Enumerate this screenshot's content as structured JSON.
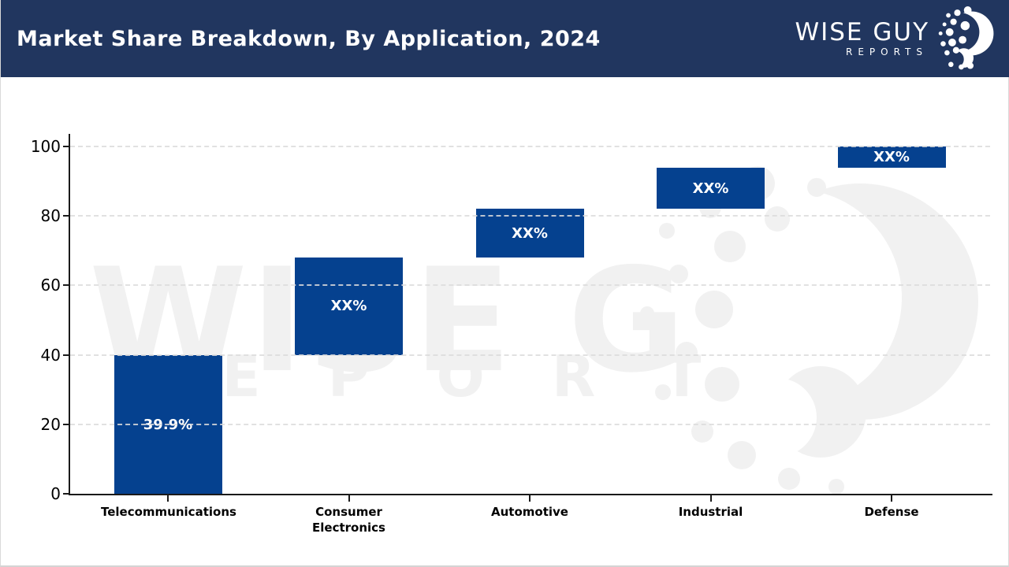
{
  "header": {
    "title": "Market Share Breakdown, By Application, 2024",
    "logo": {
      "line1": "WISE GUY",
      "line2": "REPORTS"
    },
    "bg_color": "#21365f",
    "text_color": "#ffffff"
  },
  "watermark": {
    "line1": "WISE GUY",
    "line2": "R E P O R T S",
    "color": "#f1f1f1"
  },
  "chart_data": {
    "type": "bar",
    "subtype": "waterfall",
    "title": "Market Share Breakdown, By Application, 2024",
    "categories": [
      "Telecommunications",
      "Consumer Electronics",
      "Automotive",
      "Industrial",
      "Defense"
    ],
    "segments": [
      {
        "category": "Telecommunications",
        "start": 0,
        "end": 39.9,
        "label": "39.9%"
      },
      {
        "category": "Consumer Electronics",
        "start": 40,
        "end": 68,
        "label": "XX%"
      },
      {
        "category": "Automotive",
        "start": 68,
        "end": 82,
        "label": "XX%"
      },
      {
        "category": "Industrial",
        "start": 82,
        "end": 93.8,
        "label": "XX%"
      },
      {
        "category": "Defense",
        "start": 93.8,
        "end": 100,
        "label": "XX%"
      }
    ],
    "yticks": [
      0,
      20,
      40,
      60,
      80,
      100
    ],
    "ylim": [
      0,
      104
    ],
    "xlabel": "",
    "ylabel": "",
    "legend": "none",
    "grid": "horizontal-dashed",
    "bar_color": "#05418f",
    "bar_label_color": "#ffffff",
    "grid_color": "#dcdcdc",
    "axis_color": "#1a1a1a"
  }
}
